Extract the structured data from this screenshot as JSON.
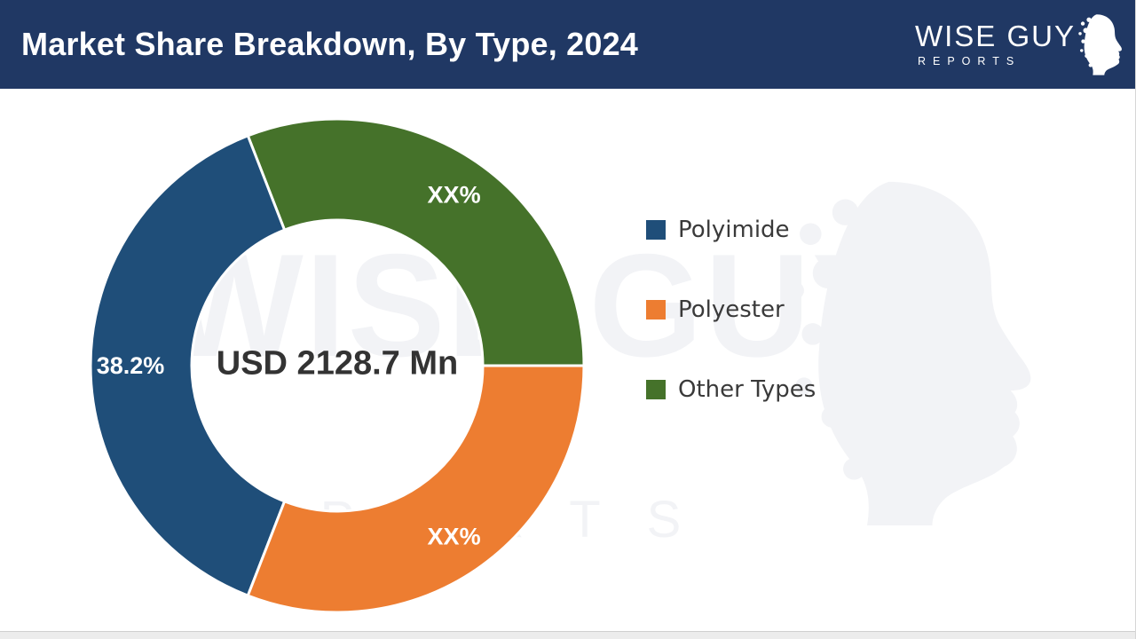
{
  "header": {
    "title": "Market Share Breakdown, By Type, 2024",
    "logo": {
      "line1": "WISE GUY",
      "line2": "REPORTS"
    }
  },
  "watermark": {
    "line1": "WISE GUY",
    "line2": "REPORTS"
  },
  "chart_data": {
    "type": "donut",
    "title": "Market Share Breakdown, By Type, 2024",
    "center_label": "USD 2128.7 Mn",
    "unit": "percent market share",
    "start_angle_deg": 0,
    "direction": "counterclockwise",
    "inner_radius_ratio": 0.59,
    "legend_position": "right",
    "segments": [
      {
        "name": "Other Types",
        "value_pct": 30.9,
        "display_label": "XX%",
        "color": "#45722A"
      },
      {
        "name": "Polyimide",
        "value_pct": 38.2,
        "display_label": "38.2%",
        "color": "#1F4E79"
      },
      {
        "name": "Polyester",
        "value_pct": 30.9,
        "display_label": "XX%",
        "color": "#ED7D31"
      }
    ]
  },
  "legend": {
    "items": [
      {
        "label": "Polyimide",
        "color": "#1F4E79"
      },
      {
        "label": "Polyester",
        "color": "#ED7D31"
      },
      {
        "label": "Other Types",
        "color": "#45722A"
      }
    ]
  },
  "colors": {
    "header_bg": "#203864",
    "center_text": "#333333",
    "watermark": "#F2F3F6"
  }
}
